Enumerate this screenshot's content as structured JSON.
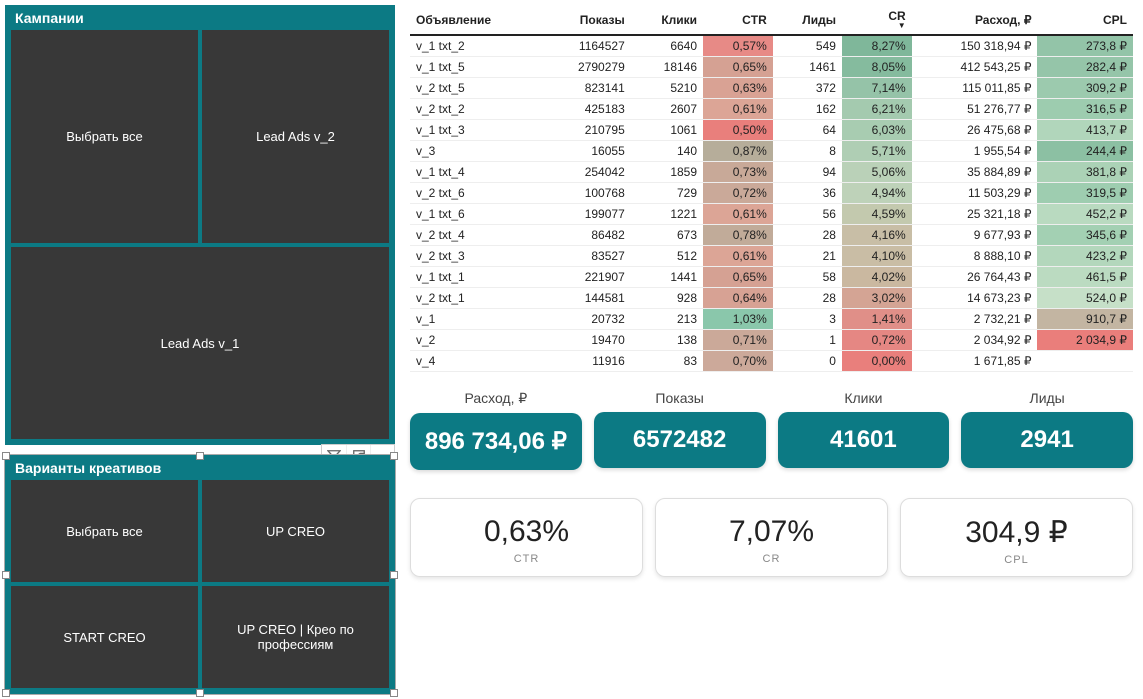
{
  "panels": {
    "campaigns": {
      "title": "Кампании",
      "tiles": [
        {
          "label": "Выбрать все",
          "row": 0
        },
        {
          "label": "Lead Ads v_2",
          "row": 0
        },
        {
          "label": "Lead Ads v_1",
          "row": 1
        }
      ]
    },
    "creatives": {
      "title": "Варианты креативов",
      "tiles": [
        {
          "label": "Выбрать все",
          "row": 0
        },
        {
          "label": "UP CREO",
          "row": 0
        },
        {
          "label": "START CREO",
          "row": 1
        },
        {
          "label": "UP CREO | Крео по профессиям",
          "row": 1
        }
      ]
    }
  },
  "table": {
    "columns": [
      {
        "key": "ad",
        "label": "Объявление",
        "align": "l"
      },
      {
        "key": "imp",
        "label": "Показы",
        "align": "r"
      },
      {
        "key": "clk",
        "label": "Клики",
        "align": "r"
      },
      {
        "key": "ctr",
        "label": "CTR",
        "align": "r",
        "heat": "ctr"
      },
      {
        "key": "lead",
        "label": "Лиды",
        "align": "r"
      },
      {
        "key": "cr",
        "label": "CR",
        "align": "r",
        "heat": "cr",
        "sorted": true
      },
      {
        "key": "cost",
        "label": "Расход, ₽",
        "align": "r"
      },
      {
        "key": "cpl",
        "label": "CPL",
        "align": "r",
        "heat": "cpl"
      }
    ],
    "rows": [
      {
        "ad": "v_1 txt_2",
        "imp": "1164527",
        "clk": "6640",
        "ctr": "0,57%",
        "ctrC": "#e78a86",
        "lead": "549",
        "cr": "8,27%",
        "crC": "#7fb79a",
        "cost": "150 318,94 ₽",
        "cpl": "273,8 ₽",
        "cplC": "#93c4a8"
      },
      {
        "ad": "v_1 txt_5",
        "imp": "2790279",
        "clk": "18146",
        "ctr": "0,65%",
        "ctrC": "#d5a193",
        "lead": "1461",
        "cr": "8,05%",
        "crC": "#85bb9e",
        "cost": "412 543,25 ₽",
        "cpl": "282,4 ₽",
        "cplC": "#95c5a9"
      },
      {
        "ad": "v_2 txt_5",
        "imp": "823141",
        "clk": "5210",
        "ctr": "0,63%",
        "ctrC": "#d9a294",
        "lead": "372",
        "cr": "7,14%",
        "crC": "#95c3a8",
        "cost": "115 011,85 ₽",
        "cpl": "309,2 ₽",
        "cplC": "#9ccaae"
      },
      {
        "ad": "v_2 txt_2",
        "imp": "425183",
        "clk": "2607",
        "ctr": "0,61%",
        "ctrC": "#dca596",
        "lead": "162",
        "cr": "6,21%",
        "crC": "#a4caaf",
        "cost": "51 276,77 ₽",
        "cpl": "316,5 ₽",
        "cplC": "#9dccaf"
      },
      {
        "ad": "v_1 txt_3",
        "imp": "210795",
        "clk": "1061",
        "ctr": "0,50%",
        "ctrC": "#e97f7c",
        "lead": "64",
        "cr": "6,03%",
        "crC": "#a8ccb1",
        "cost": "26 475,68 ₽",
        "cpl": "413,7 ₽",
        "cplC": "#b1d6bb"
      },
      {
        "ad": "v_3",
        "imp": "16055",
        "clk": "140",
        "ctr": "0,87%",
        "ctrC": "#b6ad9a",
        "lead": "8",
        "cr": "5,71%",
        "crC": "#afceb4",
        "cost": "1 955,54 ₽",
        "cpl": "244,4 ₽",
        "cplC": "#8cc0a3"
      },
      {
        "ad": "v_1 txt_4",
        "imp": "254042",
        "clk": "1859",
        "ctr": "0,73%",
        "ctrC": "#c8a998",
        "lead": "94",
        "cr": "5,06%",
        "crC": "#bad1b8",
        "cost": "35 884,89 ₽",
        "cpl": "381,8 ₽",
        "cplC": "#abd2b6"
      },
      {
        "ad": "v_2 txt_6",
        "imp": "100768",
        "clk": "729",
        "ctr": "0,72%",
        "ctrC": "#caa999",
        "lead": "36",
        "cr": "4,94%",
        "crC": "#bed2b9",
        "cost": "11 503,29 ₽",
        "cpl": "319,5 ₽",
        "cplC": "#9ecdb0"
      },
      {
        "ad": "v_1 txt_6",
        "imp": "199077",
        "clk": "1221",
        "ctr": "0,61%",
        "ctrC": "#dca596",
        "lead": "56",
        "cr": "4,59%",
        "crC": "#c3c9ae",
        "cost": "25 321,18 ₽",
        "cpl": "452,2 ₽",
        "cplC": "#b9dac0"
      },
      {
        "ad": "v_2 txt_4",
        "imp": "86482",
        "clk": "673",
        "ctr": "0,78%",
        "ctrC": "#c1ab99",
        "lead": "28",
        "cr": "4,16%",
        "crC": "#c8bea6",
        "cost": "9 677,93 ₽",
        "cpl": "345,6 ₽",
        "cplC": "#a3d0b3"
      },
      {
        "ad": "v_2 txt_3",
        "imp": "83527",
        "clk": "512",
        "ctr": "0,61%",
        "ctrC": "#dca596",
        "lead": "21",
        "cr": "4,10%",
        "crC": "#c9bda5",
        "cost": "8 888,10 ₽",
        "cpl": "423,2 ₽",
        "cplC": "#b3d7bc"
      },
      {
        "ad": "v_1 txt_1",
        "imp": "221907",
        "clk": "1441",
        "ctr": "0,65%",
        "ctrC": "#d5a193",
        "lead": "58",
        "cr": "4,02%",
        "crC": "#cab8a0",
        "cost": "26 764,43 ₽",
        "cpl": "461,5 ₽",
        "cplC": "#bbdbc1"
      },
      {
        "ad": "v_2 txt_1",
        "imp": "144581",
        "clk": "928",
        "ctr": "0,64%",
        "ctrC": "#d7a294",
        "lead": "28",
        "cr": "3,02%",
        "crC": "#d4a494",
        "cost": "14 673,23 ₽",
        "cpl": "524,0 ₽",
        "cplC": "#c6e0c8"
      },
      {
        "ad": "v_1",
        "imp": "20732",
        "clk": "213",
        "ctr": "1,03%",
        "ctrC": "#8ac7ab",
        "lead": "3",
        "cr": "1,41%",
        "crC": "#e08f88",
        "cost": "2 732,21 ₽",
        "cpl": "910,7 ₽",
        "cplC": "#c3b5a2"
      },
      {
        "ad": "v_2",
        "imp": "19470",
        "clk": "138",
        "ctr": "0,71%",
        "ctrC": "#cba999",
        "lead": "1",
        "cr": "0,72%",
        "crC": "#e58783",
        "cost": "2 034,92 ₽",
        "cpl": "2 034,9 ₽",
        "cplC": "#ea7e7b"
      },
      {
        "ad": "v_4",
        "imp": "11916",
        "clk": "83",
        "ctr": "0,70%",
        "ctrC": "#cca99a",
        "lead": "0",
        "cr": "0,00%",
        "crC": "#e97f7c",
        "cost": "1 671,85 ₽",
        "cpl": "",
        "cplC": ""
      }
    ]
  },
  "kpi_top": [
    {
      "label": "Расход, ₽",
      "value": "896 734,06 ₽"
    },
    {
      "label": "Показы",
      "value": "6572482"
    },
    {
      "label": "Клики",
      "value": "41601"
    },
    {
      "label": "Лиды",
      "value": "2941"
    }
  ],
  "kpi_bottom": [
    {
      "value": "0,63%",
      "label": "CTR"
    },
    {
      "value": "7,07%",
      "label": "CR"
    },
    {
      "value": "304,9 ₽",
      "label": "CPL"
    }
  ],
  "colors": {
    "teal": "#0c7a84",
    "tile": "#383838"
  }
}
